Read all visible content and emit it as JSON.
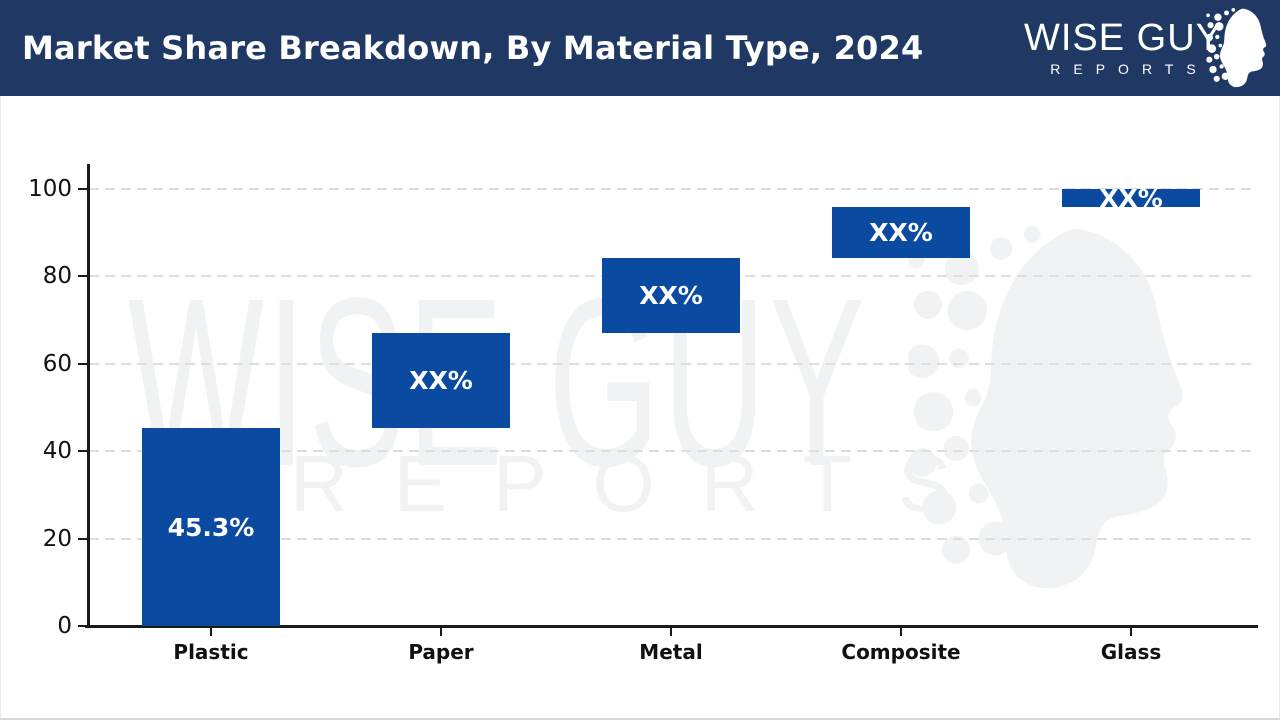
{
  "header": {
    "title": "Market Share Breakdown, By Material Type, 2024",
    "logo": {
      "name": "WISE GUY",
      "subname": "REPORTS"
    }
  },
  "watermark": {
    "name": "WISE GUY",
    "subname": "REPORTS"
  },
  "colors": {
    "header_bg": "#1f3864",
    "bar": "#0b4aa1",
    "bar_label": "#ffffff",
    "grid": "#dedede",
    "axis": "#1a1a1a",
    "watermark": "#f1f2f4"
  },
  "chart_data": {
    "type": "bar",
    "variant": "waterfall",
    "title": "Market Share Breakdown, By Material Type, 2024",
    "categories": [
      "Plastic",
      "Paper",
      "Metal",
      "Composite",
      "Glass"
    ],
    "segments": [
      {
        "category": "Plastic",
        "start": 0,
        "end": 45.3,
        "label": "45.3%"
      },
      {
        "category": "Paper",
        "start": 45.3,
        "end": 67.0,
        "label": "XX%"
      },
      {
        "category": "Metal",
        "start": 67.0,
        "end": 84.2,
        "label": "XX%"
      },
      {
        "category": "Composite",
        "start": 84.2,
        "end": 95.8,
        "label": "XX%"
      },
      {
        "category": "Glass",
        "start": 95.8,
        "end": 100.0,
        "label": "XX%"
      }
    ],
    "xlabel": "",
    "ylabel": "",
    "yticks": [
      0,
      20,
      40,
      60,
      80,
      100
    ],
    "ylim": [
      0,
      105
    ],
    "grid": "horizontal-dashed",
    "legend": "none"
  }
}
